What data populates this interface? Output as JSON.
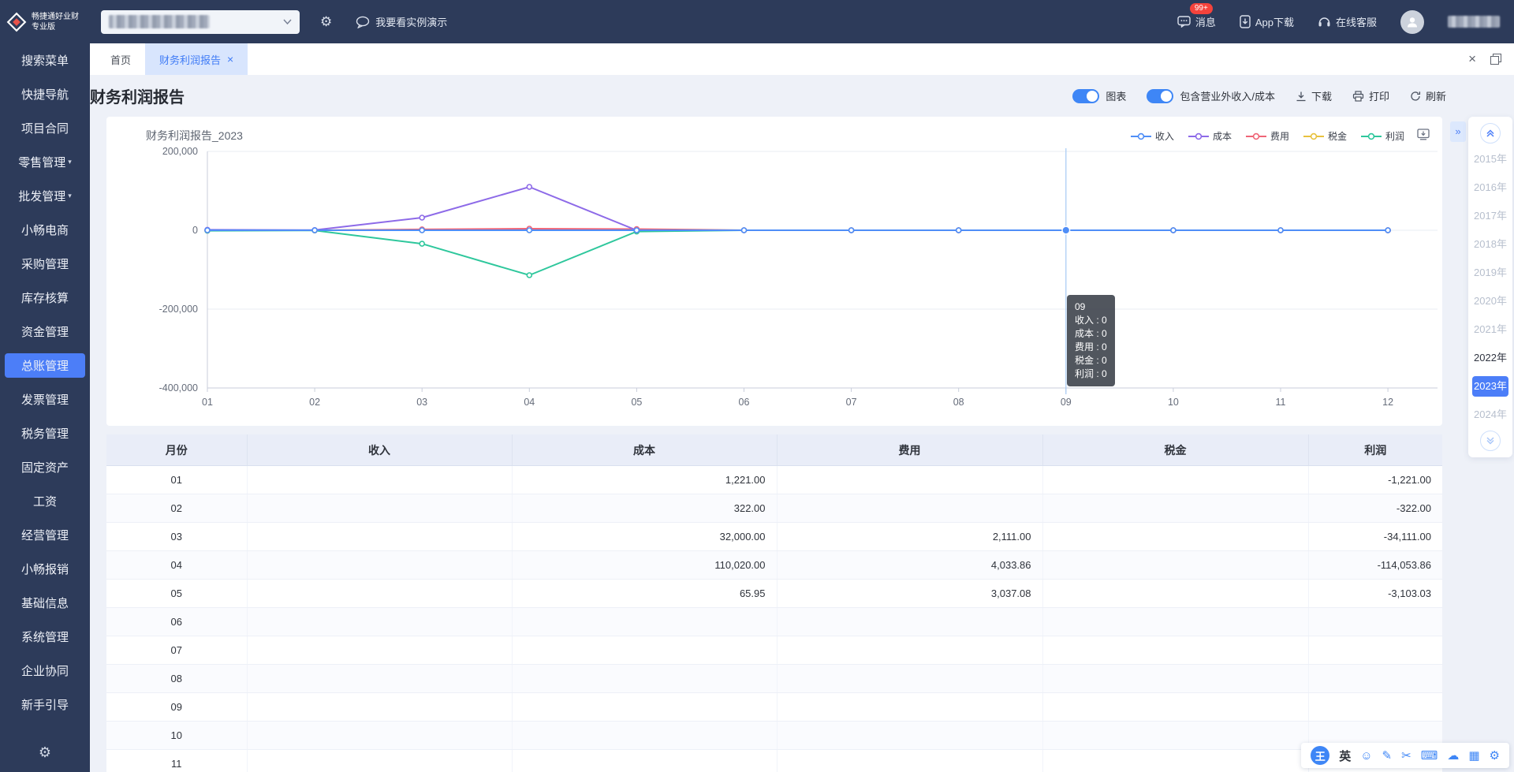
{
  "topbar": {
    "logo_title": "畅捷通好业财",
    "logo_subtitle": "专业版",
    "demo_label": "我要看实例演示",
    "messages_label": "消息",
    "messages_badge": "99+",
    "app_download_label": "App下载",
    "support_label": "在线客服"
  },
  "tabs": {
    "items": [
      {
        "label": "首页",
        "name": "tab-home",
        "active": false,
        "closable": false
      },
      {
        "label": "财务利润报告",
        "name": "tab-financial-profit-report",
        "active": true,
        "closable": true
      }
    ]
  },
  "sidebar": {
    "items": [
      {
        "label": "搜索菜单",
        "name": "search-menu",
        "arrow": false,
        "active": false
      },
      {
        "label": "快捷导航",
        "name": "quick-nav",
        "arrow": false,
        "active": false
      },
      {
        "label": "项目合同",
        "name": "project-contract",
        "arrow": false,
        "active": false
      },
      {
        "label": "零售管理",
        "name": "retail-mgmt",
        "arrow": true,
        "active": false
      },
      {
        "label": "批发管理",
        "name": "wholesale-mgmt",
        "arrow": true,
        "active": false
      },
      {
        "label": "小畅电商",
        "name": "xiaochang-ecommerce",
        "arrow": false,
        "active": false
      },
      {
        "label": "采购管理",
        "name": "purchase-mgmt",
        "arrow": false,
        "active": false
      },
      {
        "label": "库存核算",
        "name": "inventory-accounting",
        "arrow": false,
        "active": false
      },
      {
        "label": "资金管理",
        "name": "funds-mgmt",
        "arrow": false,
        "active": false
      },
      {
        "label": "总账管理",
        "name": "general-ledger",
        "arrow": false,
        "active": true
      },
      {
        "label": "发票管理",
        "name": "invoice-mgmt",
        "arrow": false,
        "active": false
      },
      {
        "label": "税务管理",
        "name": "tax-mgmt",
        "arrow": false,
        "active": false
      },
      {
        "label": "固定资产",
        "name": "fixed-assets",
        "arrow": false,
        "active": false
      },
      {
        "label": "工资",
        "name": "payroll",
        "arrow": false,
        "active": false
      },
      {
        "label": "经营管理",
        "name": "operations-mgmt",
        "arrow": false,
        "active": false
      },
      {
        "label": "小畅报销",
        "name": "xiaochang-expense",
        "arrow": false,
        "active": false
      },
      {
        "label": "基础信息",
        "name": "basic-info",
        "arrow": false,
        "active": false
      },
      {
        "label": "系统管理",
        "name": "system-mgmt",
        "arrow": false,
        "active": false
      },
      {
        "label": "企业协同",
        "name": "enterprise-collab",
        "arrow": false,
        "active": false
      },
      {
        "label": "新手引导",
        "name": "beginner-guide",
        "arrow": false,
        "active": false
      }
    ]
  },
  "page": {
    "title": "财务利润报告"
  },
  "controls": {
    "chart_toggle_label": "图表",
    "chart_toggle_on": true,
    "include_toggle_label": "包含营业外收入/成本",
    "include_toggle_on": true,
    "download_label": "下载",
    "print_label": "打印",
    "refresh_label": "刷新"
  },
  "chart_data": {
    "type": "line",
    "title": "财务利润报告_2023",
    "x": [
      "01",
      "02",
      "03",
      "04",
      "05",
      "06",
      "07",
      "08",
      "09",
      "10",
      "11",
      "12"
    ],
    "ylim": [
      -400000,
      200000
    ],
    "yticks": [
      200000,
      0,
      -200000,
      -400000
    ],
    "ytick_labels": [
      "200,000",
      "0",
      "-200,000",
      "-400,000"
    ],
    "grid": true,
    "legend_position": "top-right",
    "series": [
      {
        "name": "收入",
        "color": "#4f8ef7",
        "values": [
          0,
          0,
          0,
          0,
          0,
          0,
          0,
          0,
          0,
          0,
          0,
          0
        ]
      },
      {
        "name": "成本",
        "color": "#8d6ae8",
        "values": [
          1221,
          322,
          32000,
          110020,
          65.95,
          0,
          0,
          0,
          0,
          0,
          0,
          0
        ]
      },
      {
        "name": "费用",
        "color": "#ef6577",
        "values": [
          0,
          0,
          2111,
          4033.86,
          3037.08,
          0,
          0,
          0,
          0,
          0,
          0,
          0
        ]
      },
      {
        "name": "税金",
        "color": "#e8c23e",
        "values": [
          0,
          0,
          0,
          0,
          0,
          0,
          0,
          0,
          0,
          0,
          0,
          0
        ]
      },
      {
        "name": "利润",
        "color": "#2ec79c",
        "values": [
          -1221,
          -322,
          -34111,
          -114053.86,
          -3103.03,
          0,
          0,
          0,
          0,
          0,
          0,
          0
        ]
      }
    ],
    "tooltip": {
      "x_index": 8,
      "title": "09",
      "lines": [
        "收入 : 0",
        "成本 : 0",
        "费用 : 0",
        "税金 : 0",
        "利润 : 0"
      ]
    }
  },
  "year_panel": {
    "years": [
      "2015年",
      "2016年",
      "2017年",
      "2018年",
      "2019年",
      "2020年",
      "2021年",
      "2022年",
      "2023年",
      "2024年"
    ],
    "active": "2023年",
    "highlighted": "2022年"
  },
  "table": {
    "headers": [
      "月份",
      "收入",
      "成本",
      "费用",
      "税金",
      "利润"
    ],
    "column_keys": [
      "month",
      "income",
      "cost",
      "expense",
      "tax",
      "profit"
    ],
    "rows": [
      [
        "01",
        "",
        "1,221.00",
        "",
        "",
        "-1,221.00"
      ],
      [
        "02",
        "",
        "322.00",
        "",
        "",
        "-322.00"
      ],
      [
        "03",
        "",
        "32,000.00",
        "2,111.00",
        "",
        "-34,111.00"
      ],
      [
        "04",
        "",
        "110,020.00",
        "4,033.86",
        "",
        "-114,053.86"
      ],
      [
        "05",
        "",
        "65.95",
        "3,037.08",
        "",
        "-3,103.03"
      ],
      [
        "06",
        "",
        "",
        "",
        "",
        ""
      ],
      [
        "07",
        "",
        "",
        "",
        "",
        ""
      ],
      [
        "08",
        "",
        "",
        "",
        "",
        ""
      ],
      [
        "09",
        "",
        "",
        "",
        "",
        ""
      ],
      [
        "10",
        "",
        "",
        "",
        "",
        ""
      ],
      [
        "11",
        "",
        "",
        "",
        "",
        ""
      ]
    ]
  },
  "ime": {
    "logo_char": "王",
    "mode_char": "英",
    "icons": [
      {
        "name": "emoji-icon",
        "glyph": "☺"
      },
      {
        "name": "pen-icon",
        "glyph": "✎"
      },
      {
        "name": "scissors-icon",
        "glyph": "✂"
      },
      {
        "name": "keyboard-icon",
        "glyph": "⌨"
      },
      {
        "name": "cloud-icon",
        "glyph": "☁"
      },
      {
        "name": "toolbox-icon",
        "glyph": "▦"
      },
      {
        "name": "settings-icon",
        "glyph": "⚙"
      }
    ]
  },
  "colors": {
    "accent": "#3e86f6",
    "topbar_bg": "#2d3b5a",
    "active_item_bg": "#4c7ef8",
    "badge_red": "#f4433c",
    "table_header_bg": "#e9edf8"
  }
}
